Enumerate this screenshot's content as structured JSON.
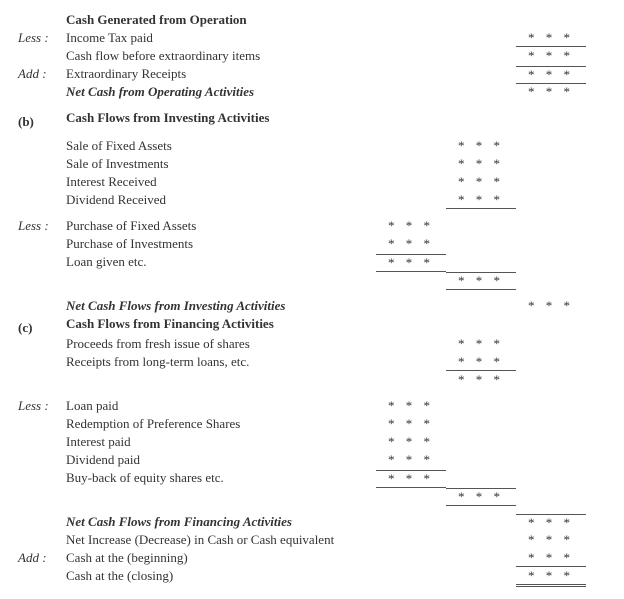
{
  "dotmark": "* * *",
  "labels": {
    "less": "Less :",
    "add": "Add :",
    "b": "(b)",
    "c": "(c)"
  },
  "lines": {
    "l1": "Cash Generated from Operation",
    "l2": "Income Tax paid",
    "l3": "Cash flow before extraordinary items",
    "l4": "Extraordinary Receipts",
    "l5": "Net Cash from Operating Activities",
    "h2": "Cash Flows from Investing Activities",
    "l6": "Sale of Fixed Assets",
    "l7": "Sale of Investments",
    "l8": "Interest Received",
    "l9": "Dividend Received",
    "l10": "Purchase of Fixed Assets",
    "l11": "Purchase of Investments",
    "l12": "Loan given etc.",
    "l13": "Net Cash Flows from Investing Activities",
    "h3": "Cash Flows from Financing Activities",
    "l14": "Proceeds from fresh issue of shares",
    "l15": "Receipts from long-term loans, etc.",
    "l16": "Loan paid",
    "l17": "Redemption of Preference Shares",
    "l18": "Interest paid",
    "l19": "Dividend paid",
    "l20": "Buy-back of equity shares etc.",
    "l21": "Net Cash Flows from Financing Activities",
    "l22": "Net Increase (Decrease) in Cash or Cash equivalent",
    "l23": "Cash at the (beginning)",
    "l24": "Cash at the (closing)"
  }
}
